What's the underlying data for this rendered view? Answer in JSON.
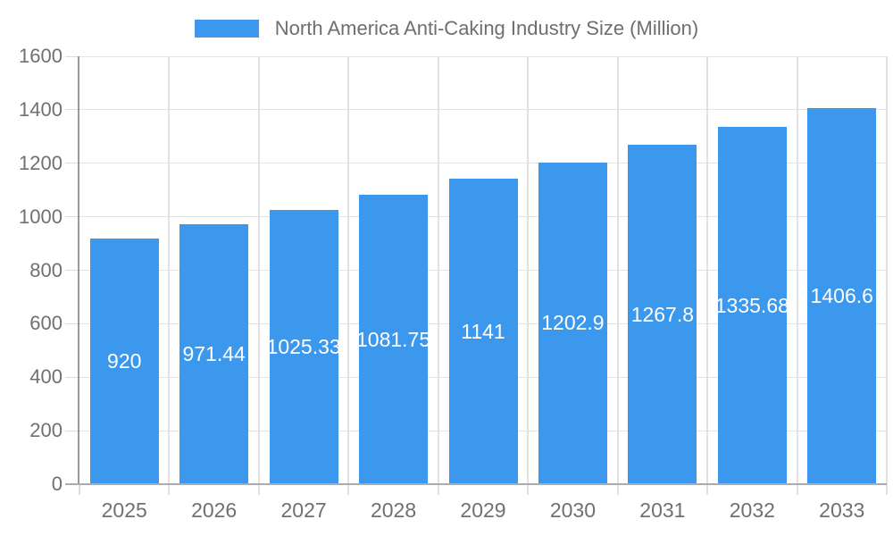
{
  "legend": {
    "label": "North America Anti-Caking Industry Size (Million)",
    "swatch_color": "#3B98EC"
  },
  "chart_data": {
    "type": "bar",
    "title": "North America Anti-Caking Industry Size (Million)",
    "categories": [
      "2025",
      "2026",
      "2027",
      "2028",
      "2029",
      "2030",
      "2031",
      "2032",
      "2033"
    ],
    "values": [
      920,
      971.44,
      1025.33,
      1081.75,
      1141,
      1202.9,
      1267.8,
      1335.68,
      1406.6
    ],
    "value_labels": [
      "920",
      "971.44",
      "1025.33",
      "1081.75",
      "1141",
      "1202.9",
      "1267.8",
      "1335.68",
      "1406.6"
    ],
    "xlabel": "",
    "ylabel": "",
    "ylim": [
      0,
      1600
    ],
    "yticks": [
      0,
      200,
      400,
      600,
      800,
      1000,
      1200,
      1400,
      1600
    ],
    "grid": true,
    "legend_position": "top",
    "bar_color": "#3B98EC",
    "bar_label_color": "#ffffff",
    "axis_text_color": "#707070"
  }
}
